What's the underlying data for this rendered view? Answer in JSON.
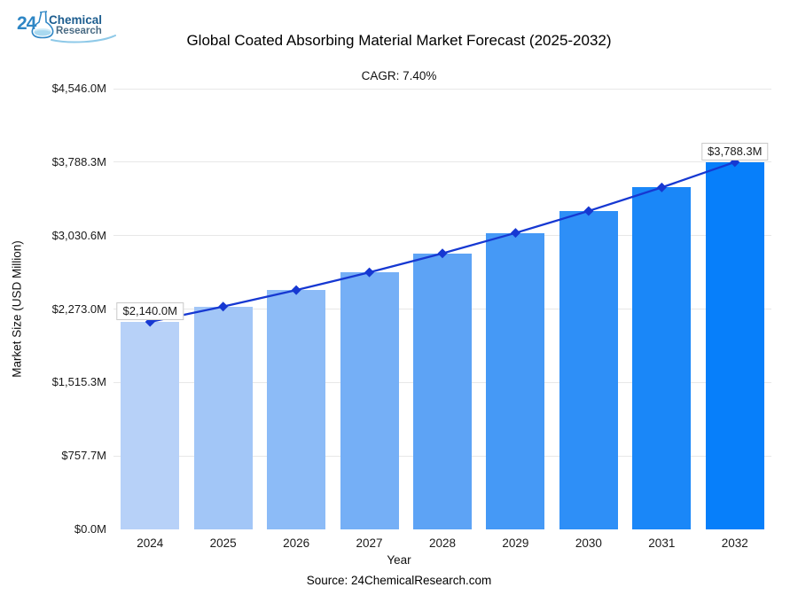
{
  "header": {
    "logo": {
      "number": "24",
      "line1": "Chemical",
      "line2": "Research"
    }
  },
  "chart_data": {
    "type": "bar",
    "overlay": "line",
    "title": "Global Coated Absorbing Material Market Forecast (2025-2032)",
    "subtitle": "CAGR: 7.40%",
    "categories": [
      "2024",
      "2025",
      "2026",
      "2027",
      "2028",
      "2029",
      "2030",
      "2031",
      "2032"
    ],
    "values": [
      2140.0,
      2298.4,
      2468.4,
      2651.1,
      2847.3,
      3058.0,
      3284.3,
      3527.3,
      3788.3
    ],
    "bar_colors": [
      "#b7d1f8",
      "#a2c6f7",
      "#8cbbf7",
      "#75aff6",
      "#5da3f5",
      "#4599f6",
      "#2e8ff7",
      "#1a87f8",
      "#077ffa"
    ],
    "line_color": "#1638d2",
    "xlabel": "Year",
    "ylabel": "Market Size (USD Million)",
    "ylim": [
      0,
      4546.0
    ],
    "yticks": [
      0.0,
      757.7,
      1515.3,
      2273.0,
      3030.6,
      3788.3,
      4546.0
    ],
    "ytick_labels": [
      "$0.0M",
      "$757.7M",
      "$1,515.3M",
      "$2,273.0M",
      "$3,030.6M",
      "$3,788.3M",
      "$4,546.0M"
    ],
    "grid": true,
    "legend": false,
    "annotations": [
      {
        "category": "2024",
        "text": "$2,140.0M"
      },
      {
        "category": "2032",
        "text": "$3,788.3M"
      }
    ]
  },
  "footer": {
    "source": "Source: 24ChemicalResearch.com"
  }
}
